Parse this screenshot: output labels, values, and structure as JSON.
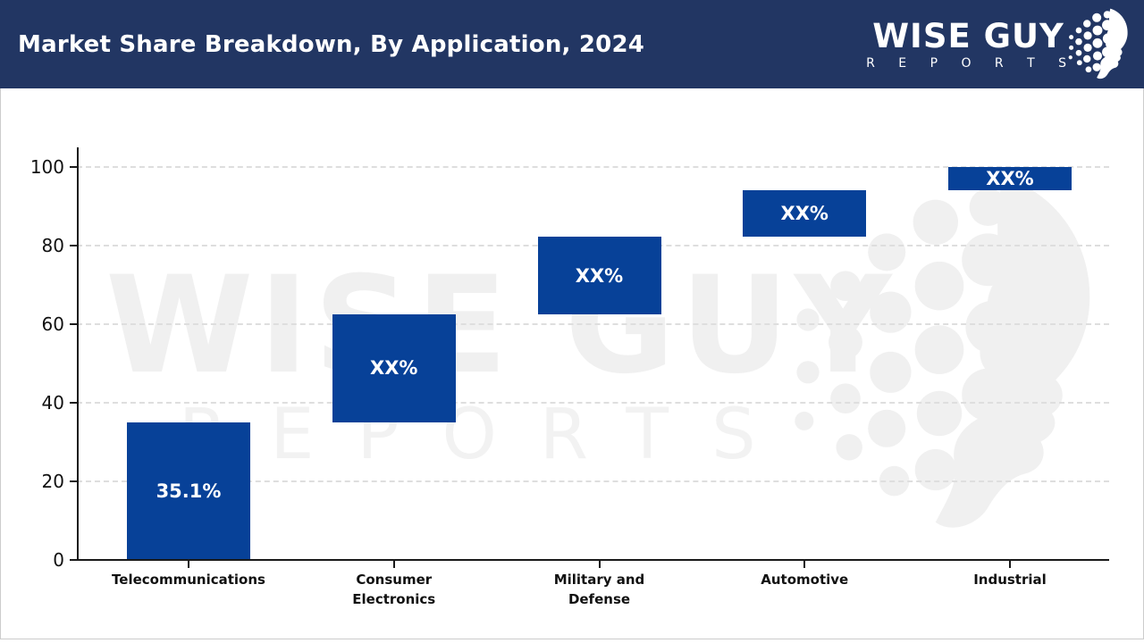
{
  "header": {
    "title": "Market Share Breakdown, By Application, 2024",
    "logo": {
      "line1": "WISE GUY",
      "line2": "R E P O R T S"
    }
  },
  "watermark": {
    "line1": "WISE GUY",
    "line2": "REPORTS"
  },
  "colors": {
    "header_bg": "#223663",
    "bar": "#074198",
    "bar_label": "#ffffff",
    "grid": "#dedede",
    "axis": "#1a1a1a",
    "watermark": "#f0f0f0",
    "frame_border": "#cccccc"
  },
  "chart_data": {
    "type": "bar",
    "subtype": "waterfall",
    "title": "Market Share Breakdown, By Application, 2024",
    "xlabel": "",
    "ylabel": "",
    "ylim": [
      0,
      100
    ],
    "y_ticks": [
      0,
      20,
      40,
      60,
      80,
      100
    ],
    "grid": "horizontal-dashed",
    "legend": "none",
    "categories": [
      "Telecommunications",
      "Consumer\nElectronics",
      "Military and\nDefense",
      "Automotive",
      "Industrial"
    ],
    "segments": [
      {
        "category": "Telecommunications",
        "label": "35.1%",
        "start": 0,
        "end": 35.1
      },
      {
        "category": "Consumer Electronics",
        "label": "XX%",
        "start": 35.1,
        "end": 62.5
      },
      {
        "category": "Military and Defense",
        "label": "XX%",
        "start": 62.5,
        "end": 82.2
      },
      {
        "category": "Automotive",
        "label": "XX%",
        "start": 82.2,
        "end": 94.1
      },
      {
        "category": "Industrial",
        "label": "XX%",
        "start": 94.1,
        "end": 100
      }
    ]
  }
}
